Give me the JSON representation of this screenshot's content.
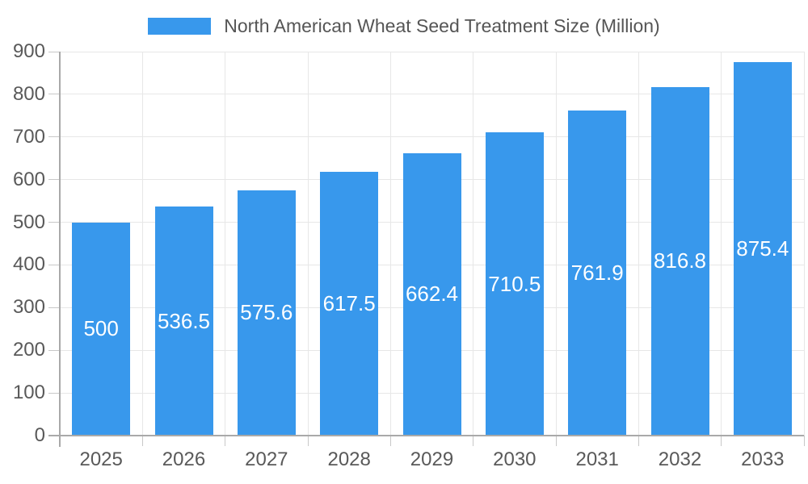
{
  "chart_data": {
    "type": "bar",
    "title": "North American Wheat Seed Treatment Size (Million)",
    "categories": [
      "2025",
      "2026",
      "2027",
      "2028",
      "2029",
      "2030",
      "2031",
      "2032",
      "2033"
    ],
    "values": [
      500,
      536.5,
      575.6,
      617.5,
      662.4,
      710.5,
      761.9,
      816.8,
      875.4
    ],
    "value_labels": [
      "500",
      "536.5",
      "575.6",
      "617.5",
      "662.4",
      "710.5",
      "761.9",
      "816.8",
      "875.4"
    ],
    "xlabel": "",
    "ylabel": "",
    "ylim": [
      0,
      900
    ],
    "ytick_step": 100,
    "ytick_labels": [
      "0",
      "100",
      "200",
      "300",
      "400",
      "500",
      "600",
      "700",
      "800",
      "900"
    ],
    "grid": true,
    "legend_position": "top",
    "colors": {
      "bar": "#3898ec",
      "bar_label": "#ffffff",
      "axis_text": "#595959",
      "title_text": "#555555",
      "gridline": "#e7e7e7",
      "axis_line": "#a9a9a9",
      "tick": "#c8c8c8",
      "background": "#ffffff"
    }
  }
}
